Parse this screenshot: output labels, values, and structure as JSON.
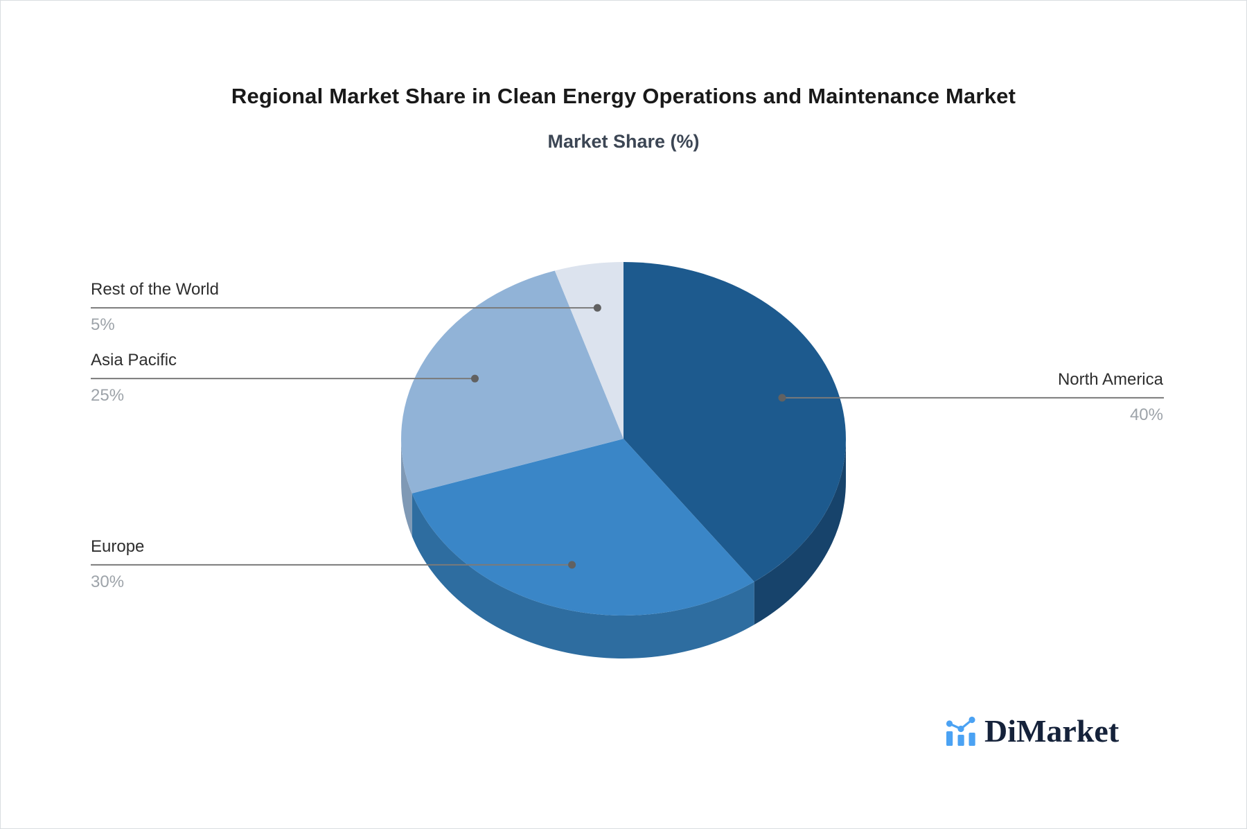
{
  "chart_data": {
    "type": "pie",
    "title": "Regional Market Share in Clean Energy Operations and Maintenance Market",
    "subtitle": "Market Share (%)",
    "unit": "%",
    "start_angle_deg": 0,
    "direction": "clockwise",
    "effect_3d": true,
    "slices": [
      {
        "name": "North America",
        "value": 40,
        "display": "40%",
        "color": "#1D5A8E",
        "side_color": "#17436B",
        "label_side": "right"
      },
      {
        "name": "Europe",
        "value": 30,
        "display": "30%",
        "color": "#3A86C7",
        "side_color": "#2E6DA0",
        "label_side": "left"
      },
      {
        "name": "Asia Pacific",
        "value": 25,
        "display": "25%",
        "color": "#91B3D7",
        "side_color": "#7F99B5",
        "label_side": "left"
      },
      {
        "name": "Rest of the World",
        "value": 5,
        "display": "5%",
        "color": "#DCE3EE",
        "side_color": "#C3CCDA",
        "label_side": "left"
      }
    ],
    "leader_line_color": "#7a7a7a",
    "leader_dot_color": "#616161",
    "label_text_color": "#2e2e2e",
    "value_text_color": "#9da3a9"
  },
  "branding": {
    "logo_text": "DiMarket",
    "logo_icon": "bar-line-chart-icon",
    "logo_icon_color": "#4BA2F3",
    "logo_text_color": "#15223a"
  }
}
